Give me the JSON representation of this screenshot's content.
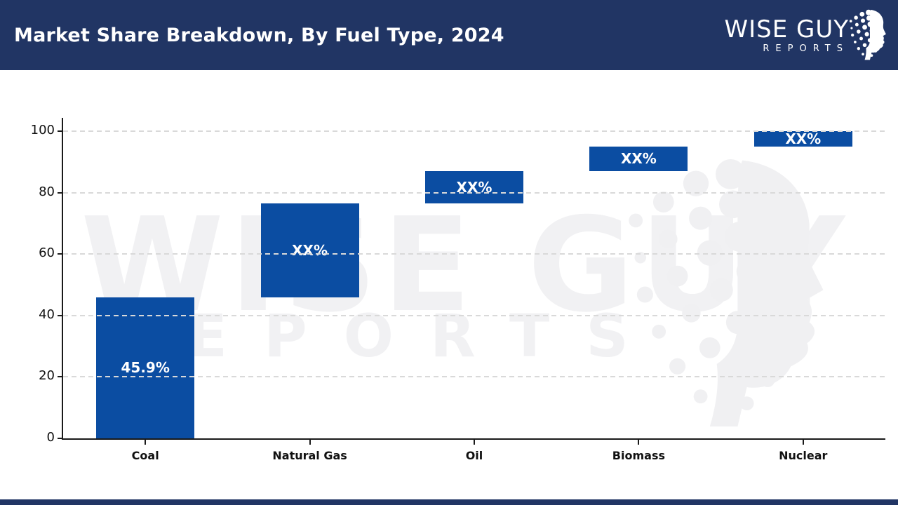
{
  "header": {
    "title": "Market Share Breakdown, By Fuel Type, 2024",
    "bg_color": "#213564",
    "logo": {
      "wordmark": "WISE GUY",
      "subtext": "REPORTS"
    }
  },
  "watermark": {
    "line1": "WISE GUY",
    "line2": "REPORTS"
  },
  "footer": {
    "bg_color": "#213564"
  },
  "chart_data": {
    "type": "bar",
    "subtype": "waterfall",
    "title": "Market Share Breakdown, By Fuel Type, 2024",
    "categories": [
      "Coal",
      "Natural Gas",
      "Oil",
      "Biomass",
      "Nuclear"
    ],
    "segments": [
      {
        "category": "Coal",
        "start": 0,
        "end": 45.9,
        "label": "45.9%"
      },
      {
        "category": "Natural Gas",
        "start": 45.9,
        "end": 76.5,
        "label": "XX%"
      },
      {
        "category": "Oil",
        "start": 76.5,
        "end": 87,
        "label": "XX%"
      },
      {
        "category": "Biomass",
        "start": 87,
        "end": 95,
        "label": "XX%"
      },
      {
        "category": "Nuclear",
        "start": 95,
        "end": 100,
        "label": "XX%"
      }
    ],
    "ylim": [
      0,
      100
    ],
    "yticks": [
      0,
      20,
      40,
      60,
      80,
      100
    ],
    "bar_color": "#0b4da2",
    "grid": "dashed-horizontal",
    "legend": "none"
  }
}
